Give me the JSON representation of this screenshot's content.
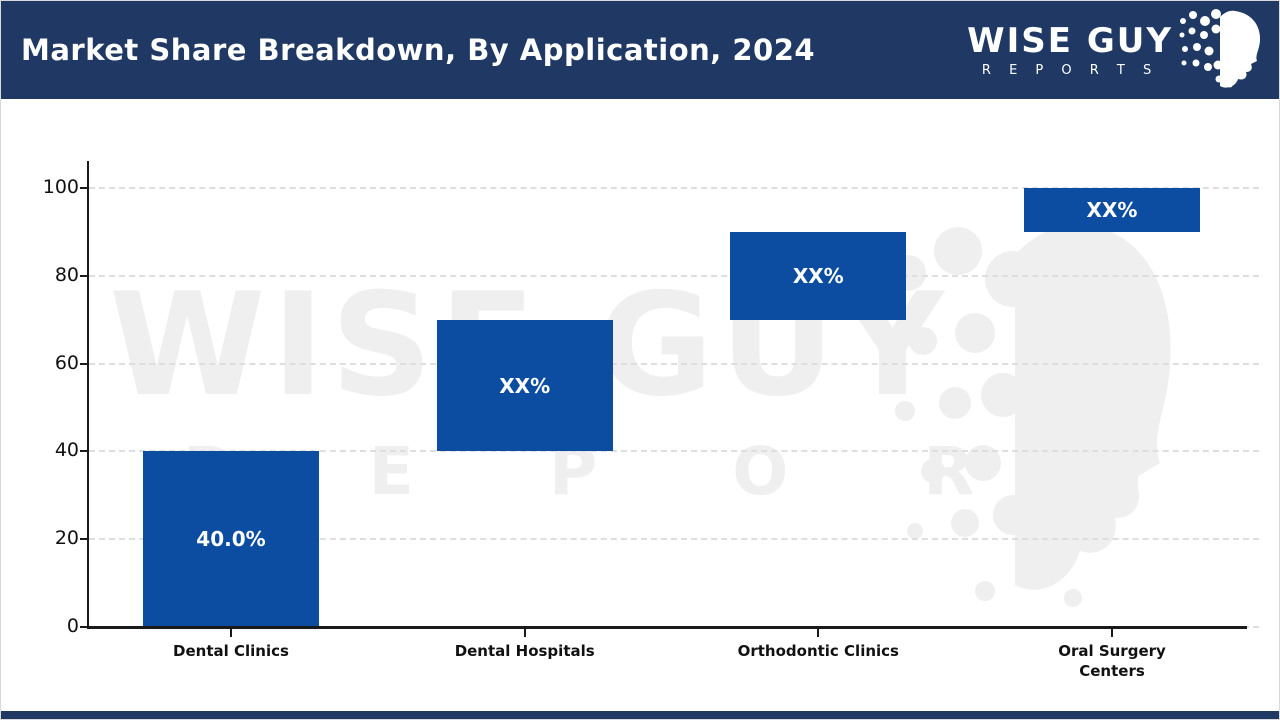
{
  "header": {
    "title": "Market Share Breakdown, By Application, 2024",
    "brand_line1": "WISE GUY",
    "brand_line2": "R E P O R T S",
    "bg_color": "#1F3864"
  },
  "watermark": {
    "line1": "WISE GUY",
    "line2": "R E P O R T S"
  },
  "chart_data": {
    "type": "bar",
    "subtype": "waterfall",
    "title": "Market Share Breakdown, By Application, 2024",
    "categories": [
      "Dental Clinics",
      "Dental Hospitals",
      "Orthodontic Clinics",
      "Oral Surgery Centers"
    ],
    "segments": [
      {
        "category": "Dental Clinics",
        "start": 0,
        "end": 40,
        "label": "40.0%"
      },
      {
        "category": "Dental Hospitals",
        "start": 40,
        "end": 70,
        "label": "XX%"
      },
      {
        "category": "Orthodontic Clinics",
        "start": 70,
        "end": 90,
        "label": "XX%"
      },
      {
        "category": "Oral Surgery Centers",
        "start": 90,
        "end": 100,
        "label": "XX%"
      }
    ],
    "ylim": [
      0,
      100
    ],
    "yticks": [
      0,
      20,
      40,
      60,
      80,
      100
    ],
    "grid": "horizontal-dashed",
    "legend": "none",
    "bar_color": "#0C4DA2",
    "bar_label_color": "#FFFFFF",
    "axis_color": "#1A1A1A",
    "grid_color": "#DEDEDE"
  },
  "colors": {
    "header_bg": "#1F3864",
    "footer_bg": "#1F3864",
    "bar": "#0C4DA2",
    "watermark": "#EFEFEF"
  }
}
